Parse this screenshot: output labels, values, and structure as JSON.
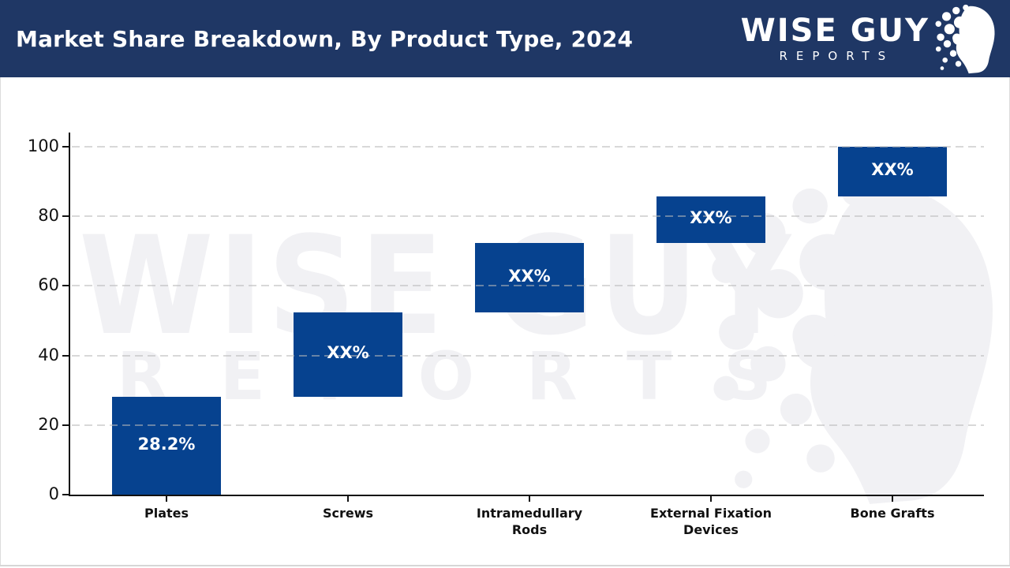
{
  "header": {
    "title": "Market Share Breakdown, By Product Type, 2024",
    "bg_color": "#1f3765",
    "logo": {
      "line1": "WISE GUY",
      "line2": "REPORTS"
    }
  },
  "watermark": {
    "line1": "WISE GUY",
    "line2": "REPORTS"
  },
  "chart_data": {
    "type": "bar",
    "subtype": "waterfall-floating-bars",
    "title": "Market Share Breakdown, By Product Type, 2024",
    "categories": [
      "Plates",
      "Screws",
      "Intramedullary Rods",
      "External Fixation Devices",
      "Bone Grafts"
    ],
    "categories_display": [
      [
        "Plates"
      ],
      [
        "Screws"
      ],
      [
        "Intramedullary",
        "Rods"
      ],
      [
        "External Fixation",
        "Devices"
      ],
      [
        "Bone Grafts"
      ]
    ],
    "series": [
      {
        "name": "Market Share (%)",
        "segments": [
          {
            "category": "Plates",
            "start": 0,
            "end": 28.2,
            "label": "28.2%"
          },
          {
            "category": "Screws",
            "start": 28.2,
            "end": 52.4,
            "label": "XX%"
          },
          {
            "category": "Intramedullary Rods",
            "start": 52.4,
            "end": 72.4,
            "label": "XX%"
          },
          {
            "category": "External Fixation Devices",
            "start": 72.4,
            "end": 85.8,
            "label": "XX%"
          },
          {
            "category": "Bone Grafts",
            "start": 85.8,
            "end": 100,
            "label": "XX%"
          }
        ]
      }
    ],
    "xlabel": "",
    "ylabel": "",
    "ylim": [
      0,
      104
    ],
    "yticks": [
      0,
      20,
      40,
      60,
      80,
      100
    ],
    "grid": "horizontal-dashed",
    "legend": "none",
    "bar_color": "#06428f",
    "label_color": "#ffffff"
  }
}
